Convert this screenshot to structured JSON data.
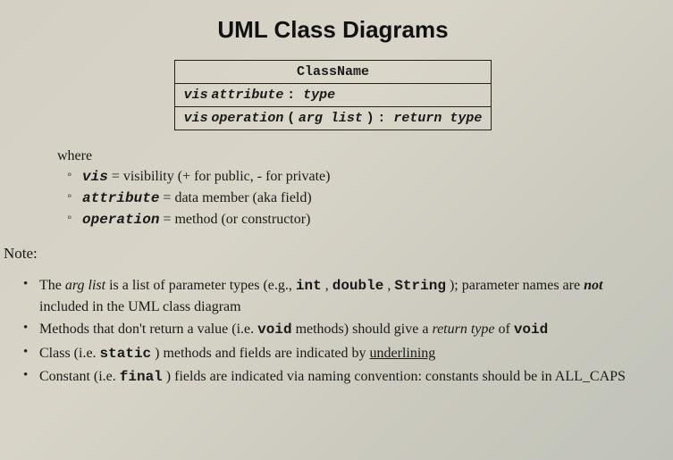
{
  "title": "UML Class Diagrams",
  "uml": {
    "header": "ClassName",
    "row1_vis": "vis",
    "row1_attr": "attribute",
    "row1_colon": " : ",
    "row1_type": "type",
    "row2_vis": "vis",
    "row2_op": "operation",
    "row2_paren_open": "(",
    "row2_arg": "arg list",
    "row2_paren_close": ")",
    "row2_colon": " : ",
    "row2_ret": "return type"
  },
  "where": {
    "label": "where",
    "items": [
      {
        "code": "vis",
        "rest": " = visibility (+ for public,  -  for private)"
      },
      {
        "code": "attribute",
        "rest": " = data member (aka field)"
      },
      {
        "code": "operation",
        "rest": " = method (or constructor)"
      }
    ]
  },
  "note": {
    "label": "Note:",
    "n1_a": "The ",
    "n1_arg": "arg list",
    "n1_b": " is a list of parameter types (e.g., ",
    "n1_c1": "int",
    "n1_c1s": ",  ",
    "n1_c2": "double",
    "n1_c2s": ",  ",
    "n1_c3": "String",
    "n1_c": "); parameter names are ",
    "n1_not": "not",
    "n1_d": " included in the UML class diagram",
    "n2_a": "Methods that don't return a value (i.e. ",
    "n2_void": "void",
    "n2_b": " methods) should give a ",
    "n2_ret": "return type",
    "n2_c": " of ",
    "n2_void2": "void",
    "n3_a": "Class (i.e. ",
    "n3_static": "static",
    "n3_b": ") methods and fields are indicated by ",
    "n3_u": "underlining",
    "n4_a": "Constant (i.e. ",
    "n4_final": "final",
    "n4_b": ") fields are indicated via naming convention: constants should be in ALL_CAPS"
  }
}
